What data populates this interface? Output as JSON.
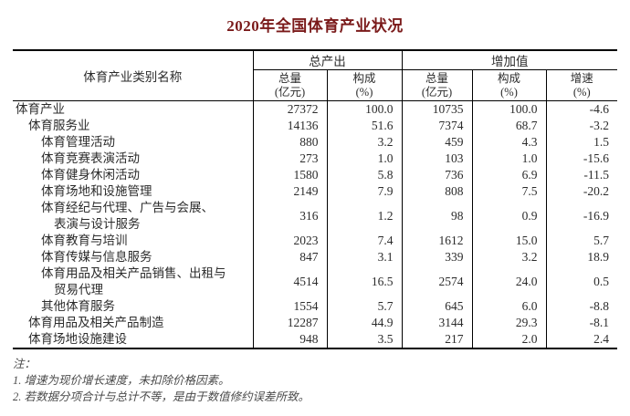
{
  "title": "2020年全国体育产业状况",
  "colors": {
    "title": "#7a1a1a",
    "border": "#000000",
    "body_text": "#2b2b2b",
    "note_text": "#4a4a4a"
  },
  "table": {
    "name_header": "体育产业类别名称",
    "groups": [
      {
        "label": "总产出",
        "cols": [
          {
            "line1": "总量",
            "line2": "(亿元)"
          },
          {
            "line1": "构成",
            "line2": "(%)"
          }
        ]
      },
      {
        "label": "增加值",
        "cols": [
          {
            "line1": "总量",
            "line2": "(亿元)"
          },
          {
            "line1": "构成",
            "line2": "(%)"
          },
          {
            "line1": "增速",
            "line2": "(%)"
          }
        ]
      }
    ],
    "rows": [
      {
        "label_lines": [
          "体育产业"
        ],
        "indent": 0,
        "values": [
          "27372",
          "100.0",
          "10735",
          "100.0",
          "-4.6"
        ]
      },
      {
        "label_lines": [
          "体育服务业"
        ],
        "indent": 1,
        "values": [
          "14136",
          "51.6",
          "7374",
          "68.7",
          "-3.2"
        ]
      },
      {
        "label_lines": [
          "体育管理活动"
        ],
        "indent": 2,
        "values": [
          "880",
          "3.2",
          "459",
          "4.3",
          "1.5"
        ]
      },
      {
        "label_lines": [
          "体育竞赛表演活动"
        ],
        "indent": 2,
        "values": [
          "273",
          "1.0",
          "103",
          "1.0",
          "-15.6"
        ]
      },
      {
        "label_lines": [
          "体育健身休闲活动"
        ],
        "indent": 2,
        "values": [
          "1580",
          "5.8",
          "736",
          "6.9",
          "-11.5"
        ]
      },
      {
        "label_lines": [
          "体育场地和设施管理"
        ],
        "indent": 2,
        "values": [
          "2149",
          "7.9",
          "808",
          "7.5",
          "-20.2"
        ]
      },
      {
        "label_lines": [
          "体育经纪与代理、广告与会展、",
          "表演与设计服务"
        ],
        "indent": 2,
        "values": [
          "316",
          "1.2",
          "98",
          "0.9",
          "-16.9"
        ]
      },
      {
        "label_lines": [
          "体育教育与培训"
        ],
        "indent": 2,
        "values": [
          "2023",
          "7.4",
          "1612",
          "15.0",
          "5.7"
        ]
      },
      {
        "label_lines": [
          "体育传媒与信息服务"
        ],
        "indent": 2,
        "values": [
          "847",
          "3.1",
          "339",
          "3.2",
          "18.9"
        ]
      },
      {
        "label_lines": [
          "体育用品及相关产品销售、出租与",
          "贸易代理"
        ],
        "indent": 2,
        "values": [
          "4514",
          "16.5",
          "2574",
          "24.0",
          "0.5"
        ]
      },
      {
        "label_lines": [
          "其他体育服务"
        ],
        "indent": 2,
        "values": [
          "1554",
          "5.7",
          "645",
          "6.0",
          "-8.8"
        ]
      },
      {
        "label_lines": [
          "体育用品及相关产品制造"
        ],
        "indent": 1,
        "values": [
          "12287",
          "44.9",
          "3144",
          "29.3",
          "-8.1"
        ]
      },
      {
        "label_lines": [
          "体育场地设施建设"
        ],
        "indent": 1,
        "values": [
          "948",
          "3.5",
          "217",
          "2.0",
          "2.4"
        ]
      }
    ]
  },
  "notes": {
    "label": "注：",
    "items": [
      "1. 增速为现价增长速度，未扣除价格因素。",
      "2. 若数据分项合计与总计不等，是由于数值修约误差所致。"
    ]
  }
}
